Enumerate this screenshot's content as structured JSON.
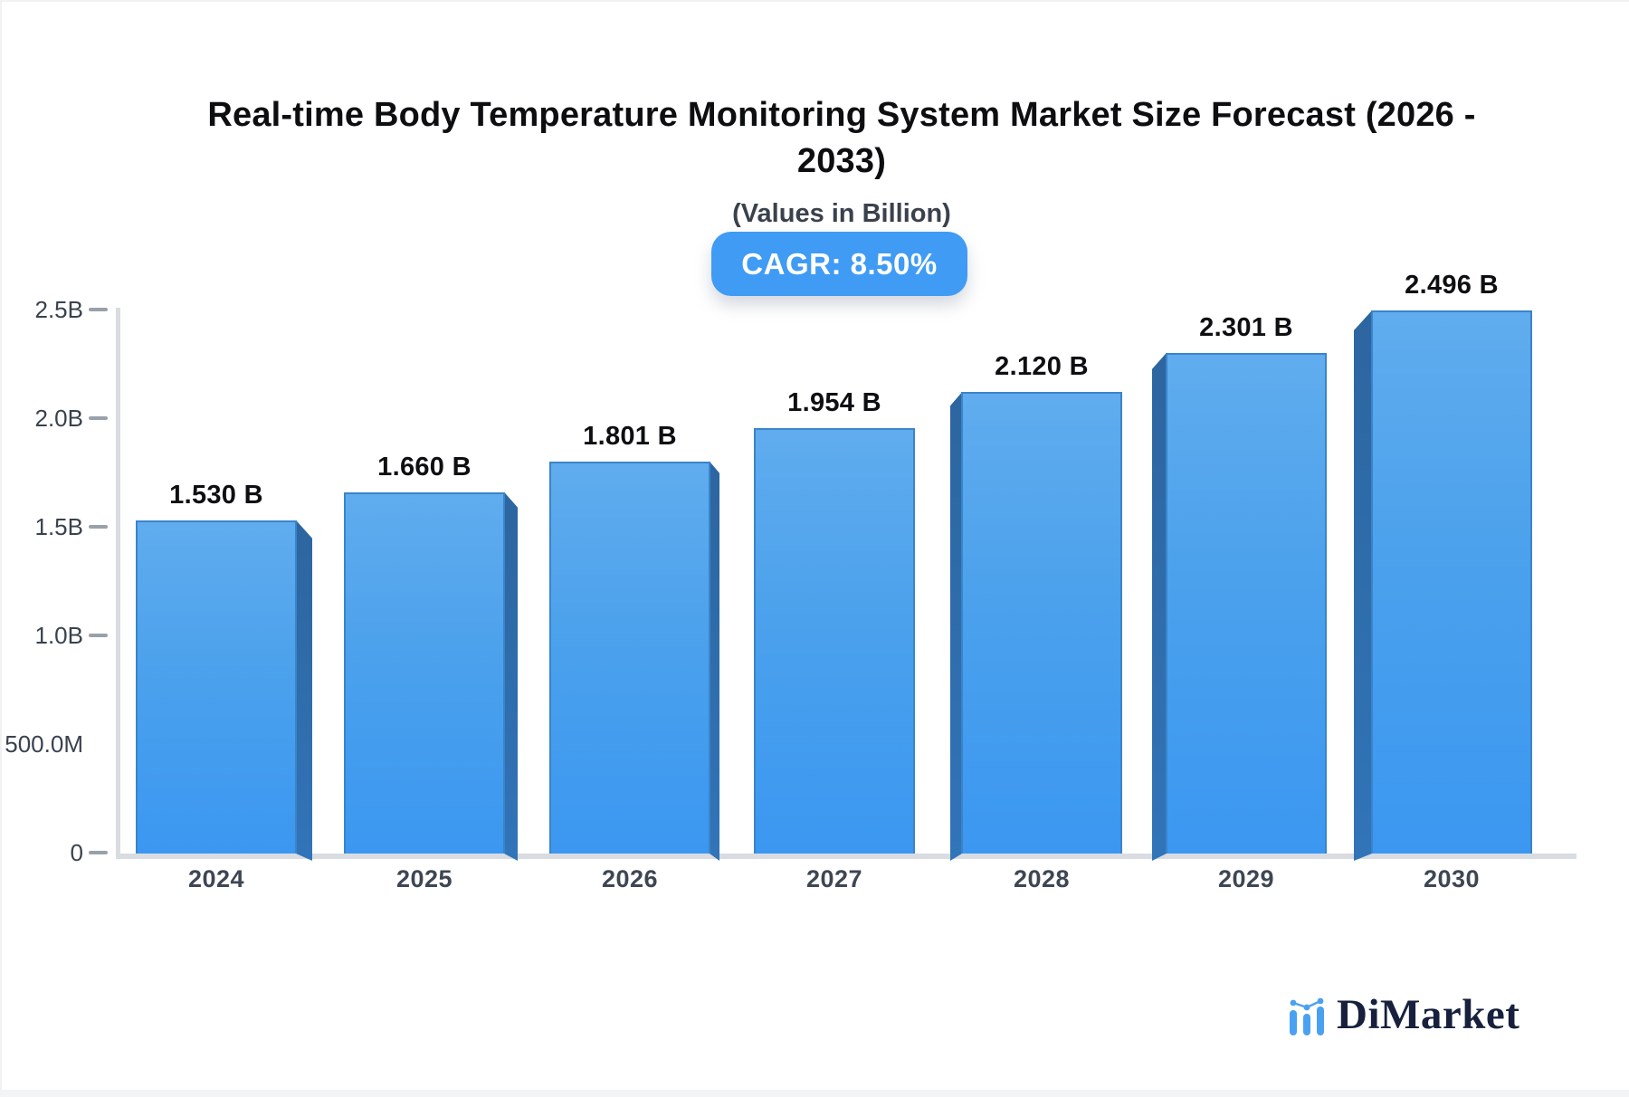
{
  "header": {
    "title_line1": "Real-time Body Temperature Monitoring System Market Size Forecast (2026 -",
    "title_line2": "2033)",
    "subtitle": "(Values in Billion)",
    "cagr_badge": "CAGR: 8.50%"
  },
  "chart_data": {
    "type": "bar",
    "title": "Real-time Body Temperature Monitoring System Market Size Forecast (2026 - 2033)",
    "subtitle": "(Values in Billion)",
    "cagr": "8.50%",
    "categories": [
      "2024",
      "2025",
      "2026",
      "2027",
      "2028",
      "2029",
      "2030"
    ],
    "values": [
      1.53,
      1.66,
      1.801,
      1.954,
      2.12,
      2.301,
      2.496
    ],
    "value_labels": [
      "1.530 B",
      "1.660 B",
      "1.801 B",
      "1.954 B",
      "2.120 B",
      "2.301 B",
      "2.496 B"
    ],
    "unit": "Billion",
    "ylim": [
      0,
      2.5
    ],
    "yticks": [
      {
        "label": "2.5B",
        "value": 2.5,
        "tick": true
      },
      {
        "label": "2.0B",
        "value": 2.0,
        "tick": true
      },
      {
        "label": "1.5B",
        "value": 1.5,
        "tick": true
      },
      {
        "label": "1.0B",
        "value": 1.0,
        "tick": true
      },
      {
        "label": "500.0M",
        "value": 0.5,
        "tick": false
      },
      {
        "label": "0",
        "value": 0.0,
        "tick": true
      }
    ],
    "grid": false,
    "legend": "none",
    "bar_style": "3d-perspective",
    "colors": {
      "bar_face_top": "#60ACEE",
      "bar_face_bottom": "#3B97F1",
      "bar_side": "#3070B0",
      "bar_border": "#3A84CA",
      "axis_line": "#d9dce1",
      "badge_bg": "#3F9BF4",
      "value_label": "#0e0f12",
      "axis_label": "#39424e"
    }
  },
  "branding": {
    "logo_text": "DiMarket",
    "logo_color": "#17203C",
    "logo_icon_color": "#4BA1F1"
  }
}
